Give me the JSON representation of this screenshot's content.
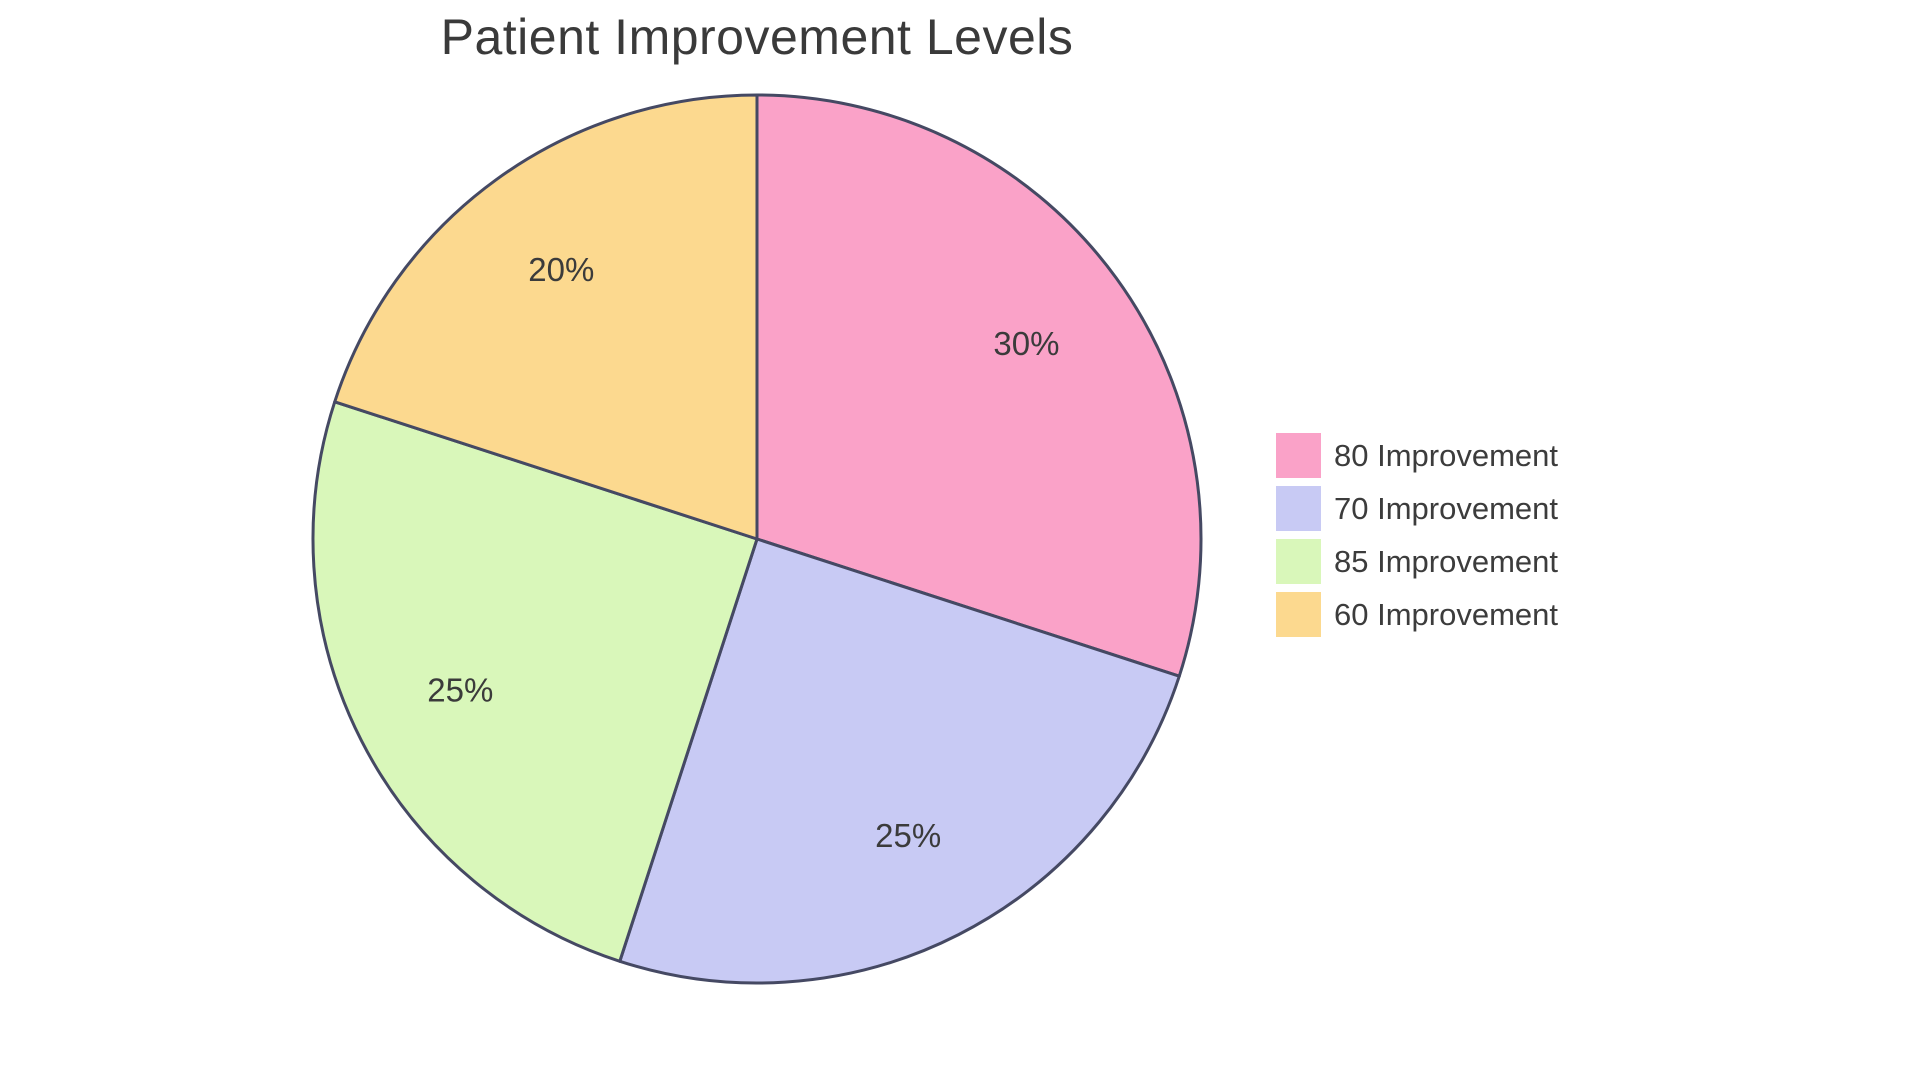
{
  "title": "Patient Improvement Levels",
  "colors": {
    "background": "#FFFFFF",
    "slice_stroke": "#454963",
    "title_text": "#3A3A3A",
    "label_text": "#3B3B3B",
    "legend_text": "#3C3C3C",
    "pink": "#FAA2C8",
    "lavender": "#C8CAF4",
    "green": "#D9F7BA",
    "yellow": "#FCD98F"
  },
  "chart_data": {
    "type": "pie",
    "title": "Patient Improvement Levels",
    "categories": [
      "80 Improvement",
      "70 Improvement",
      "85 Improvement",
      "60 Improvement"
    ],
    "values": [
      30,
      25,
      25,
      20
    ],
    "labels": [
      "30%",
      "25%",
      "25%",
      "20%"
    ],
    "slice_colors": [
      "#FAA2C8",
      "#C8CAF4",
      "#D9F7BA",
      "#FCD98F"
    ],
    "start_angle_deg": 0,
    "direction": "clockwise",
    "label_radius_fraction": 0.75,
    "legend_position": "right",
    "grid": false
  },
  "legend": {
    "items": [
      {
        "label": "80 Improvement",
        "color": "#FAA2C8"
      },
      {
        "label": "70 Improvement",
        "color": "#C8CAF4"
      },
      {
        "label": "85 Improvement",
        "color": "#D9F7BA"
      },
      {
        "label": "60 Improvement",
        "color": "#FCD98F"
      }
    ]
  }
}
